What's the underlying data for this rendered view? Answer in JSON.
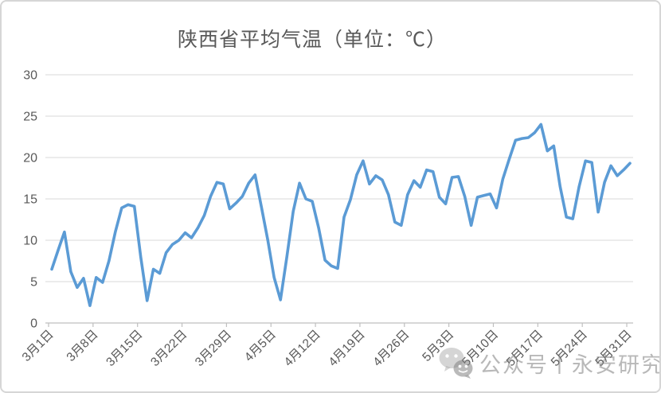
{
  "watermark": {
    "label": "公众号丨永安研究",
    "icon": "wechat-icon"
  },
  "colors": {
    "line": "#5B9BD5",
    "gridline": "#d9d9d9",
    "axis_line": "#bfbfbf",
    "axis_text": "#595959",
    "title_text": "#595959",
    "frame_border": "#d6d6d6",
    "watermark_gray": "#7d7d7d"
  },
  "chart_data": {
    "type": "line",
    "title": "陕西省平均气温（单位：℃）",
    "series_name": "陕西省平均气温",
    "legend": "none",
    "grid": "horizontal",
    "line_color": "#5B9BD5",
    "ylim": [
      0,
      30
    ],
    "y_ticks": [
      0,
      5,
      10,
      15,
      20,
      25,
      30
    ],
    "x_label_interval": 7,
    "x_tick_labels": [
      "3月1日",
      "3月8日",
      "3月15日",
      "3月22日",
      "3月29日",
      "4月5日",
      "4月12日",
      "4月19日",
      "4月26日",
      "5月3日",
      "5月10日",
      "5月17日",
      "5月24日",
      "5月31日"
    ],
    "dates": [
      "3月1日",
      "3月2日",
      "3月3日",
      "3月4日",
      "3月5日",
      "3月6日",
      "3月7日",
      "3月8日",
      "3月9日",
      "3月10日",
      "3月11日",
      "3月12日",
      "3月13日",
      "3月14日",
      "3月15日",
      "3月16日",
      "3月17日",
      "3月18日",
      "3月19日",
      "3月20日",
      "3月21日",
      "3月22日",
      "3月23日",
      "3月24日",
      "3月25日",
      "3月26日",
      "3月27日",
      "3月28日",
      "3月29日",
      "3月30日",
      "3月31日",
      "4月1日",
      "4月2日",
      "4月3日",
      "4月4日",
      "4月5日",
      "4月6日",
      "4月7日",
      "4月8日",
      "4月9日",
      "4月10日",
      "4月11日",
      "4月12日",
      "4月13日",
      "4月14日",
      "4月15日",
      "4月16日",
      "4月17日",
      "4月18日",
      "4月19日",
      "4月20日",
      "4月21日",
      "4月22日",
      "4月23日",
      "4月24日",
      "4月25日",
      "4月26日",
      "4月27日",
      "4月28日",
      "4月29日",
      "4月30日",
      "5月1日",
      "5月2日",
      "5月3日",
      "5月4日",
      "5月5日",
      "5月6日",
      "5月7日",
      "5月8日",
      "5月9日",
      "5月10日",
      "5月11日",
      "5月12日",
      "5月13日",
      "5月14日",
      "5月15日",
      "5月16日",
      "5月17日",
      "5月18日",
      "5月19日",
      "5月20日",
      "5月21日",
      "5月22日",
      "5月23日",
      "5月24日",
      "5月25日",
      "5月26日",
      "5月27日",
      "5月28日",
      "5月29日",
      "5月30日",
      "5月31日"
    ],
    "values": [
      6.5,
      8.8,
      11.0,
      6.2,
      4.3,
      5.4,
      2.1,
      5.5,
      4.9,
      7.5,
      11.0,
      13.9,
      14.3,
      14.1,
      8.0,
      2.7,
      6.5,
      6.0,
      8.5,
      9.5,
      10.0,
      10.9,
      10.3,
      11.5,
      13.0,
      15.3,
      17.0,
      16.8,
      13.8,
      14.5,
      15.3,
      16.9,
      17.9,
      14.0,
      10.0,
      5.5,
      2.8,
      8.0,
      13.5,
      16.9,
      15.0,
      14.7,
      11.5,
      7.6,
      6.9,
      6.6,
      12.8,
      14.9,
      17.9,
      19.6,
      16.8,
      17.8,
      17.3,
      15.5,
      12.2,
      11.8,
      15.5,
      17.2,
      16.4,
      18.5,
      18.3,
      15.2,
      14.4,
      17.6,
      17.7,
      15.3,
      11.8,
      15.2,
      15.4,
      15.6,
      13.9,
      17.4,
      19.8,
      22.1,
      22.3,
      22.4,
      23.0,
      24.0,
      20.8,
      21.4,
      16.5,
      12.8,
      12.6,
      16.5,
      19.6,
      19.4,
      13.4,
      17.0,
      19.0,
      17.8,
      18.5,
      19.3
    ]
  }
}
